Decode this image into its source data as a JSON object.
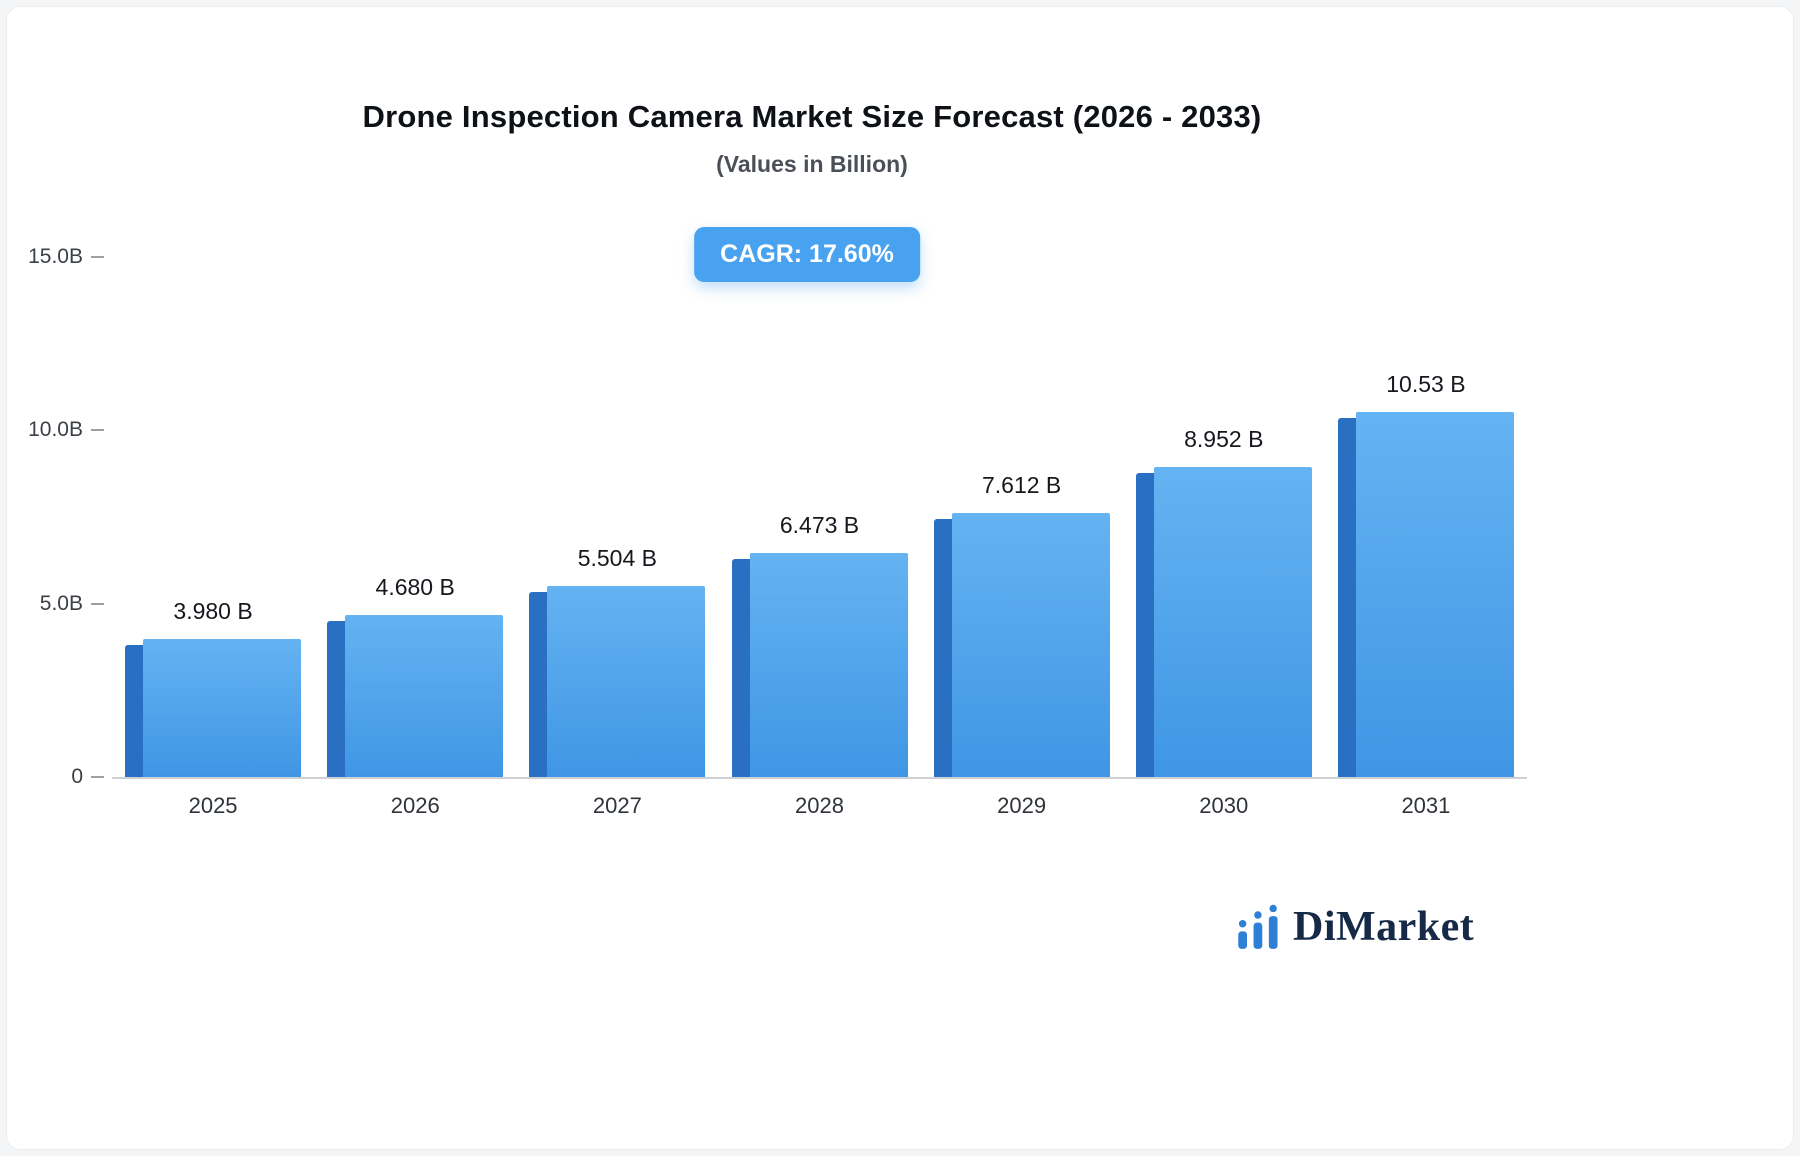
{
  "header": {
    "title": "Drone Inspection Camera Market Size Forecast (2026 - 2033)",
    "subtitle": "(Values in Billion)",
    "cagr_badge": "CAGR: 17.60%"
  },
  "footer": {
    "brand": "DiMarket",
    "logo_icon": "bar-chart-icon"
  },
  "chart_data": {
    "type": "bar",
    "title": "Drone Inspection Camera Market Size Forecast (2026 - 2033)",
    "subtitle": "(Values in Billion)",
    "annotation": "CAGR: 17.60%",
    "categories": [
      "2025",
      "2026",
      "2027",
      "2028",
      "2029",
      "2030",
      "2031"
    ],
    "values": [
      3.98,
      4.68,
      5.504,
      6.473,
      7.612,
      8.952,
      10.53
    ],
    "value_labels": [
      "3.980 B",
      "4.680 B",
      "5.504 B",
      "6.473 B",
      "7.612 B",
      "8.952 B",
      "10.53 B"
    ],
    "xlabel": "",
    "ylabel": "",
    "ylim": [
      0,
      15
    ],
    "yticks": [
      {
        "value": 0,
        "label": "0"
      },
      {
        "value": 5,
        "label": "5.0B"
      },
      {
        "value": 10,
        "label": "10.0B"
      },
      {
        "value": 15,
        "label": "15.0B"
      }
    ],
    "grid": false,
    "legend": false,
    "bar_color_top": "#64b3f2",
    "bar_color_bottom": "#4096e4",
    "bar_side_color": "#2a70c2"
  },
  "colors": {
    "badge_bg": "#49a2f0",
    "badge_text": "#ffffff",
    "axis_line": "#cdd0d4",
    "tick_text": "#3b4046",
    "title_text": "#0e1116",
    "subtitle_text": "#4b5058",
    "logo_text": "#162947",
    "logo_icon": "#2e7fd6"
  }
}
